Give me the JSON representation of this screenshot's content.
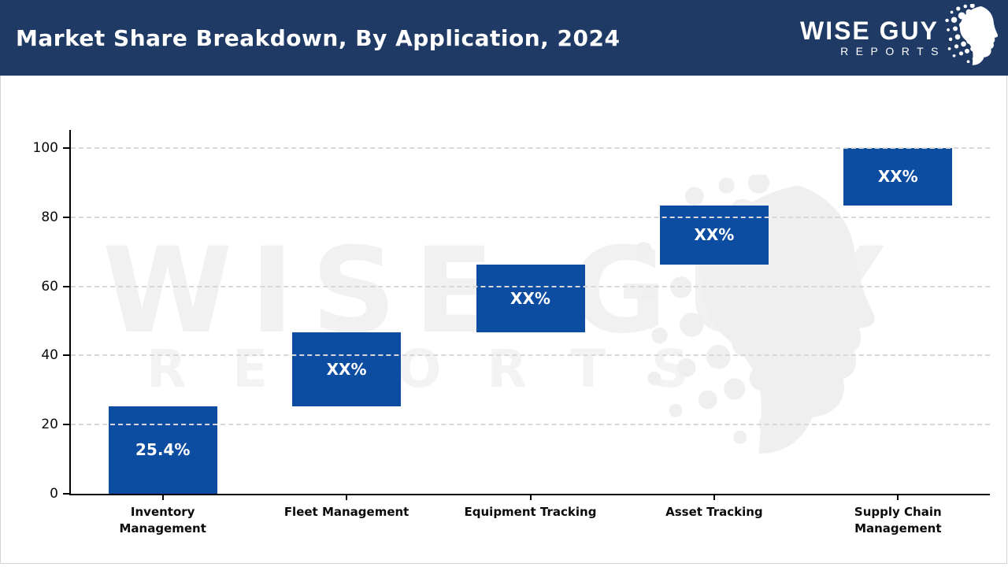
{
  "header": {
    "title": "Market Share Breakdown, By Application, 2024",
    "bg_color": "#203a66",
    "logo_line1": "WISE GUY",
    "logo_line2": "REPORTS"
  },
  "watermark": {
    "line1": "WISE GUY",
    "line2": "REPORTS"
  },
  "chart_data": {
    "type": "bar",
    "subtype": "waterfall",
    "title": "Market Share Breakdown, By Application, 2024",
    "xlabel": "",
    "ylabel": "",
    "ylim": [
      0,
      100
    ],
    "yticks": [
      0,
      20,
      40,
      60,
      80,
      100
    ],
    "grid": {
      "horizontal": true,
      "style": "dashed",
      "color": "#d8d8d8",
      "above_bars": true
    },
    "legend": "none",
    "bar_color": "#0c4da2",
    "bar_label_color": "#ffffff",
    "categories": [
      "Inventory Management",
      "Fleet Management",
      "Equipment Tracking",
      "Asset Tracking",
      "Supply Chain Management"
    ],
    "series": [
      {
        "name": "market-share-percent",
        "segments": [
          {
            "category": "Inventory Management",
            "start": 0,
            "end": 25.4,
            "label": "25.4%"
          },
          {
            "category": "Fleet Management",
            "start": 25.4,
            "end": 46.6,
            "label": "XX%"
          },
          {
            "category": "Equipment Tracking",
            "start": 46.6,
            "end": 66.4,
            "label": "XX%"
          },
          {
            "category": "Asset Tracking",
            "start": 66.4,
            "end": 83.4,
            "label": "XX%"
          },
          {
            "category": "Supply Chain Management",
            "start": 83.4,
            "end": 100,
            "label": "XX%"
          }
        ]
      }
    ]
  }
}
